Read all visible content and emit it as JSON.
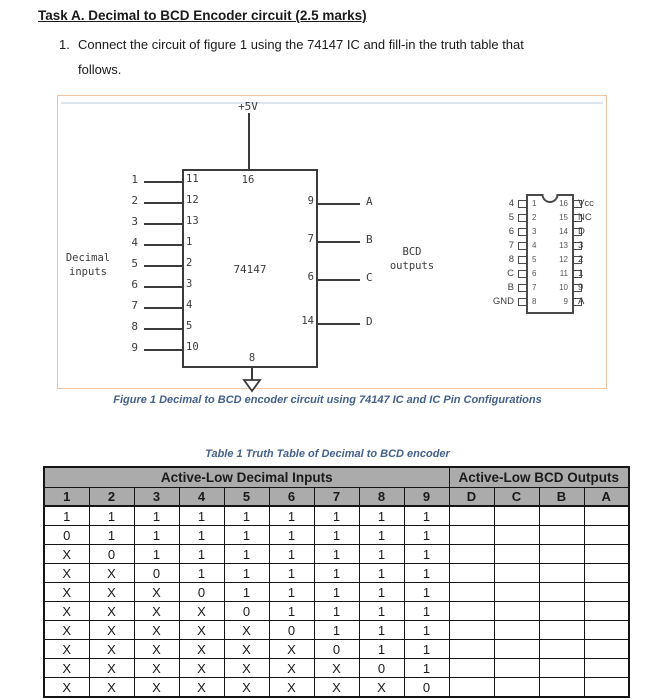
{
  "page": {
    "title": "Task A. Decimal to BCD Encoder circuit (2.5 marks)"
  },
  "instruction": {
    "number": "1.",
    "lines": [
      "Connect the circuit of figure 1 using the 74147 IC and fill-in the truth table that",
      "follows."
    ]
  },
  "figure": {
    "power_label": "+5V",
    "ic_name": "74147",
    "top_pin": "16",
    "bottom_pin": "8",
    "inputs_label": [
      "Decimal",
      "inputs"
    ],
    "outputs_label": [
      "BCD",
      "outputs"
    ],
    "inputs": [
      {
        "digit": "1",
        "pin": "11"
      },
      {
        "digit": "2",
        "pin": "12"
      },
      {
        "digit": "3",
        "pin": "13"
      },
      {
        "digit": "4",
        "pin": "1"
      },
      {
        "digit": "5",
        "pin": "2"
      },
      {
        "digit": "6",
        "pin": "3"
      },
      {
        "digit": "7",
        "pin": "4"
      },
      {
        "digit": "8",
        "pin": "5"
      },
      {
        "digit": "9",
        "pin": "10"
      }
    ],
    "outputs": [
      {
        "pin": "9",
        "label": "A"
      },
      {
        "pin": "7",
        "label": "B"
      },
      {
        "pin": "6",
        "label": "C"
      },
      {
        "pin": "14",
        "label": "D"
      }
    ],
    "dip": {
      "left_outer": [
        "4",
        "5",
        "6",
        "7",
        "8",
        "C",
        "B",
        "GND"
      ],
      "left_pins": [
        "1",
        "2",
        "3",
        "4",
        "5",
        "6",
        "7",
        "8"
      ],
      "right_pins": [
        "16",
        "15",
        "14",
        "13",
        "12",
        "11",
        "10",
        "9"
      ],
      "right_outer": [
        "Vcc",
        "NC",
        "D",
        "3",
        "2",
        "1",
        "9",
        "A"
      ]
    },
    "caption": "Figure 1 Decimal to BCD encoder circuit using 74147 IC and IC Pin Configurations"
  },
  "table": {
    "caption": "Table 1 Truth Table of Decimal to BCD encoder",
    "input_group_header": "Active-Low Decimal Inputs",
    "output_group_header": "Active-Low BCD Outputs",
    "input_columns": [
      "1",
      "2",
      "3",
      "4",
      "5",
      "6",
      "7",
      "8",
      "9"
    ],
    "output_columns": [
      "D",
      "C",
      "B",
      "A"
    ],
    "rows": [
      [
        "1",
        "1",
        "1",
        "1",
        "1",
        "1",
        "1",
        "1",
        "1"
      ],
      [
        "0",
        "1",
        "1",
        "1",
        "1",
        "1",
        "1",
        "1",
        "1"
      ],
      [
        "X",
        "0",
        "1",
        "1",
        "1",
        "1",
        "1",
        "1",
        "1"
      ],
      [
        "X",
        "X",
        "0",
        "1",
        "1",
        "1",
        "1",
        "1",
        "1"
      ],
      [
        "X",
        "X",
        "X",
        "0",
        "1",
        "1",
        "1",
        "1",
        "1"
      ],
      [
        "X",
        "X",
        "X",
        "X",
        "0",
        "1",
        "1",
        "1",
        "1"
      ],
      [
        "X",
        "X",
        "X",
        "X",
        "X",
        "0",
        "1",
        "1",
        "1"
      ],
      [
        "X",
        "X",
        "X",
        "X",
        "X",
        "X",
        "0",
        "1",
        "1"
      ],
      [
        "X",
        "X",
        "X",
        "X",
        "X",
        "X",
        "X",
        "0",
        "1"
      ],
      [
        "X",
        "X",
        "X",
        "X",
        "X",
        "X",
        "X",
        "X",
        "0"
      ]
    ]
  },
  "colors": {
    "caption-blue": "#44618c",
    "figure-border": "#eec3a3",
    "header-gray": "#ababab",
    "schematic-ink": "#3b3b3b",
    "text-ink": "#1a1a1a"
  }
}
